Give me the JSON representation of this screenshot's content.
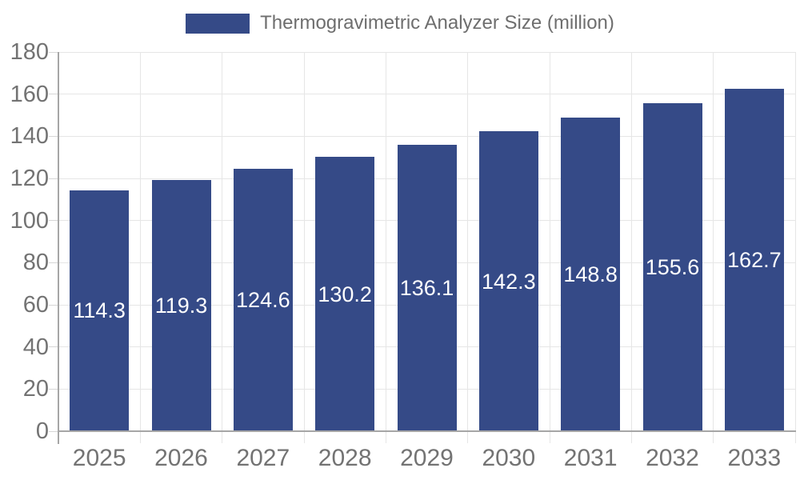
{
  "chart_data": {
    "type": "bar",
    "title": "",
    "legend_label": "Thermogravimetric Analyzer Size (million)",
    "categories": [
      "2025",
      "2026",
      "2027",
      "2028",
      "2029",
      "2030",
      "2031",
      "2032",
      "2033"
    ],
    "values": [
      114.3,
      119.3,
      124.6,
      130.2,
      136.1,
      142.3,
      148.8,
      155.6,
      162.7
    ],
    "xlabel": "",
    "ylabel": "",
    "ylim": [
      0,
      180
    ],
    "yticks": [
      0,
      20,
      40,
      60,
      80,
      100,
      120,
      140,
      160,
      180
    ],
    "grid": true,
    "legend_position": "top",
    "value_labels": "inside-center-white"
  },
  "colors": {
    "bar": "#354a87",
    "bar_label": "#ffffff",
    "axis_line": "#a6a6a6",
    "gridline": "#e6e6e6",
    "tick_mark": "#d6d6d6",
    "tick_label": "#737373",
    "legend_text": "#6e6e6e",
    "background": "#ffffff"
  }
}
